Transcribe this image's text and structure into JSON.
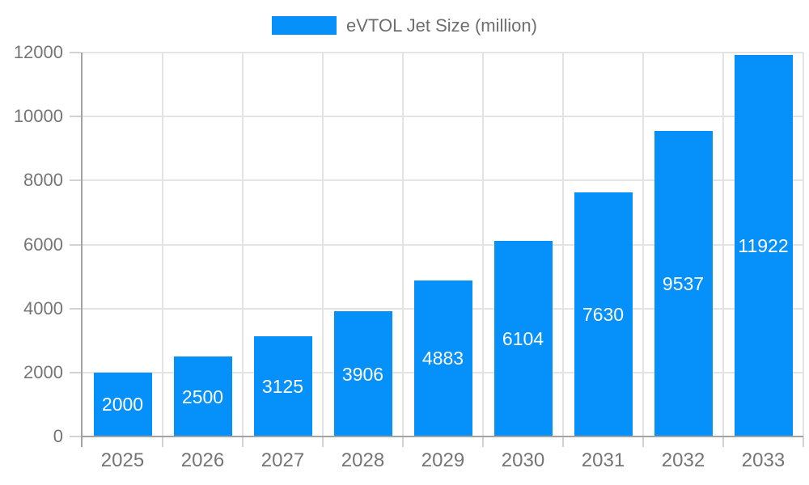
{
  "legend": {
    "label": "eVTOL Jet Size (million)"
  },
  "chart_data": {
    "type": "bar",
    "title": "",
    "categories": [
      "2025",
      "2026",
      "2027",
      "2028",
      "2029",
      "2030",
      "2031",
      "2032",
      "2033"
    ],
    "series": [
      {
        "name": "eVTOL Jet Size (million)",
        "color": "#0590fa",
        "values": [
          2000,
          2500,
          3125,
          3906,
          4883,
          6104,
          7630,
          9537,
          11922
        ]
      }
    ],
    "xlabel": "",
    "ylabel": "",
    "ylim": [
      0,
      12000
    ],
    "yticks": [
      0,
      2000,
      4000,
      6000,
      8000,
      10000,
      12000
    ],
    "grid": true,
    "legend_position": "top",
    "value_labels": "inside-center"
  },
  "colors": {
    "bar": "#0590fa",
    "grid": "#e3e3e3",
    "tick": "#d2d2d2",
    "axis": "#a3a3a3",
    "text": "#757575",
    "value_label": "#ffffff"
  }
}
